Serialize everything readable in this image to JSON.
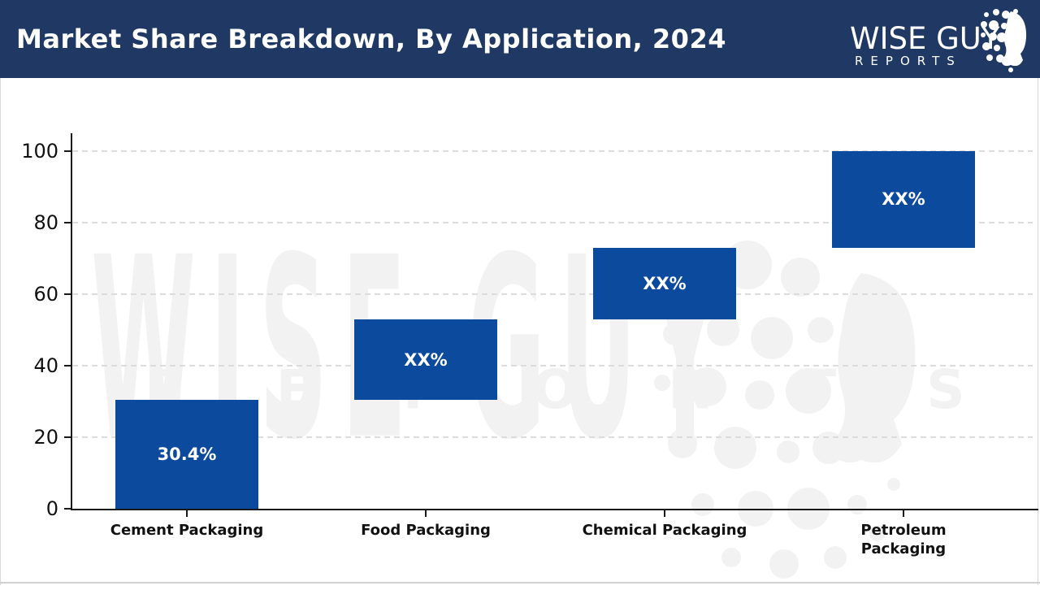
{
  "header": {
    "title": "Market Share Breakdown, By Application, 2024",
    "logo": {
      "brand": "WISE GUY",
      "sub": "REPORTS"
    }
  },
  "watermark": {
    "brand": "WISE GUY",
    "sub": "R E P O R T S"
  },
  "chart_data": {
    "type": "bar",
    "subtype": "waterfall",
    "title": "Market Share Breakdown, By Application, 2024",
    "categories": [
      "Cement Packaging",
      "Food Packaging",
      "Chemical Packaging",
      "Petroleum\nPackaging"
    ],
    "segments": [
      {
        "category": "Cement Packaging",
        "start": 0,
        "end": 30.4,
        "label": "30.4%"
      },
      {
        "category": "Food Packaging",
        "start": 30.4,
        "end": 53,
        "label": "XX%"
      },
      {
        "category": "Chemical Packaging",
        "start": 53,
        "end": 73,
        "label": "XX%"
      },
      {
        "category": "Petroleum Packaging",
        "start": 73,
        "end": 100,
        "label": "XX%"
      }
    ],
    "ylim": [
      0,
      100
    ],
    "yticks": [
      0,
      20,
      40,
      60,
      80,
      100
    ],
    "xlabel": "",
    "ylabel": "",
    "grid": "dashed-horizontal",
    "legend": "none"
  },
  "colors": {
    "header_bg": "#1f3864",
    "bar": "#0c4a9e",
    "bar_label": "#ffffff",
    "axis": "#1a1a1a",
    "grid": "#dcdcdc",
    "watermark": "#f2f2f2",
    "title_text": "#ffffff"
  }
}
